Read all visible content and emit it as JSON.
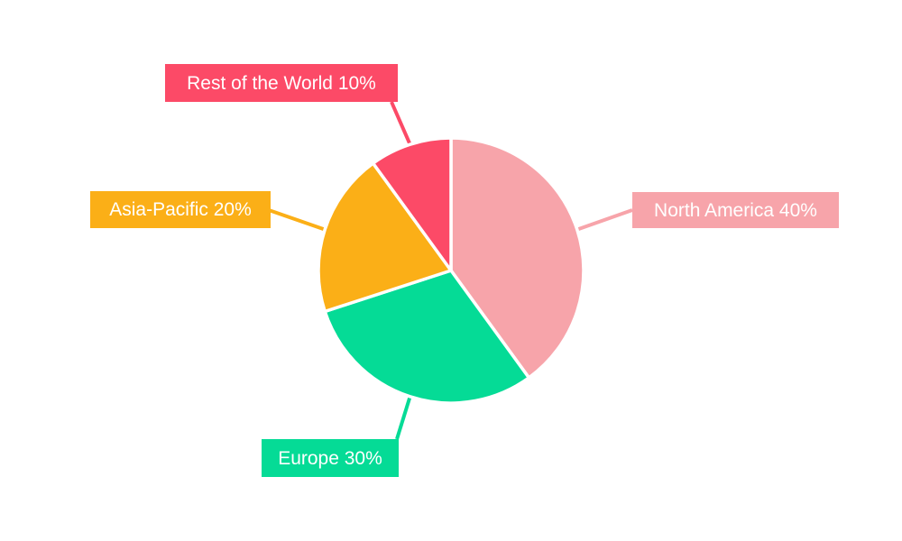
{
  "chart_data": {
    "type": "pie",
    "slices": [
      {
        "label": "North America",
        "value": 40,
        "display": "North America 40%",
        "color": "#F7A4AA"
      },
      {
        "label": "Europe",
        "value": 30,
        "display": "Europe 30%",
        "color": "#05DB96"
      },
      {
        "label": "Asia-Pacific",
        "value": 20,
        "display": "Asia-Pacific 20%",
        "color": "#FBAF17"
      },
      {
        "label": "Rest of the World",
        "value": 10,
        "display": "Rest of the World 10%",
        "color": "#FC4A67"
      }
    ],
    "start_angle_deg": 0,
    "direction": "clockwise",
    "label_style": "colored callout boxes with leader lines",
    "label_text_color": "#FFFFFF",
    "separator_color": "#FFFFFF",
    "background_color": "#FFFFFF",
    "legend": "none"
  }
}
